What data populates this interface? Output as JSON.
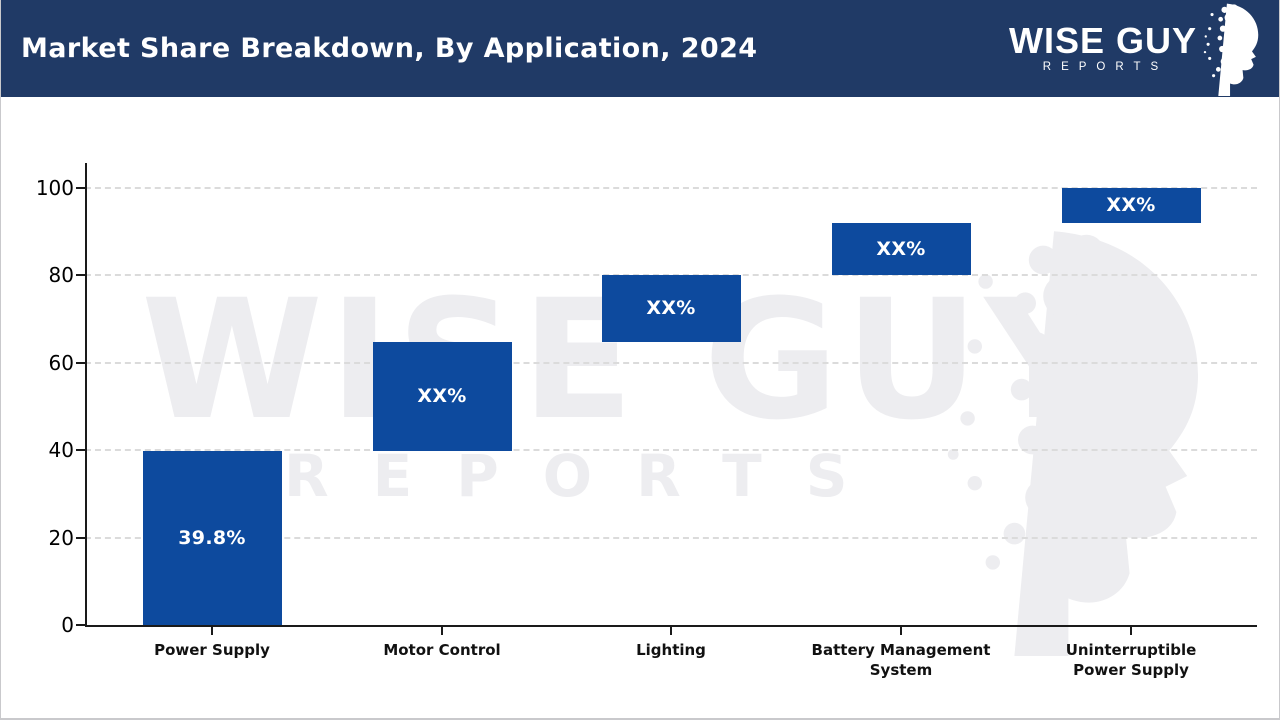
{
  "header": {
    "title": "Market Share Breakdown, By Application, 2024",
    "logo": {
      "name": "Wise Guy Reports",
      "line1": "WISE GUY",
      "line2": "REPORTS"
    }
  },
  "watermark": {
    "line1": "WISE GUY",
    "line2": "REPORTS"
  },
  "chart_data": {
    "type": "bar",
    "subtype": "waterfall",
    "title": "Market Share Breakdown, By Application, 2024",
    "categories": [
      "Power Supply",
      "Motor Control",
      "Lighting",
      "Battery Management System",
      "Uninterruptible Power Supply"
    ],
    "segments": [
      {
        "category": "Power Supply",
        "start": 0,
        "end": 39.8,
        "value": 39.8,
        "label": "39.8%"
      },
      {
        "category": "Motor Control",
        "start": 39.8,
        "end": 64.7,
        "value": 24.9,
        "label": "XX%"
      },
      {
        "category": "Lighting",
        "start": 64.7,
        "end": 80.0,
        "value": 15.3,
        "label": "XX%"
      },
      {
        "category": "Battery Management System",
        "start": 80.0,
        "end": 92.0,
        "value": 12.0,
        "label": "XX%"
      },
      {
        "category": "Uninterruptible Power Supply",
        "start": 92.0,
        "end": 100.0,
        "value": 8.0,
        "label": "XX%"
      }
    ],
    "xlabel": "",
    "ylabel": "",
    "ylim": [
      0,
      100
    ],
    "yticks": [
      0,
      20,
      40,
      60,
      80,
      100
    ],
    "grid": "horizontal-dashed",
    "legend": "none",
    "bar_color": "#0d4a9e",
    "bar_label_color": "#ffffff"
  },
  "colors": {
    "header_bg": "#203a66",
    "bar": "#0d4a9e",
    "grid": "#dbdbdb",
    "axis": "#1a1a1a",
    "watermark": "#ededf0",
    "page_border": "#c9c9cc"
  }
}
